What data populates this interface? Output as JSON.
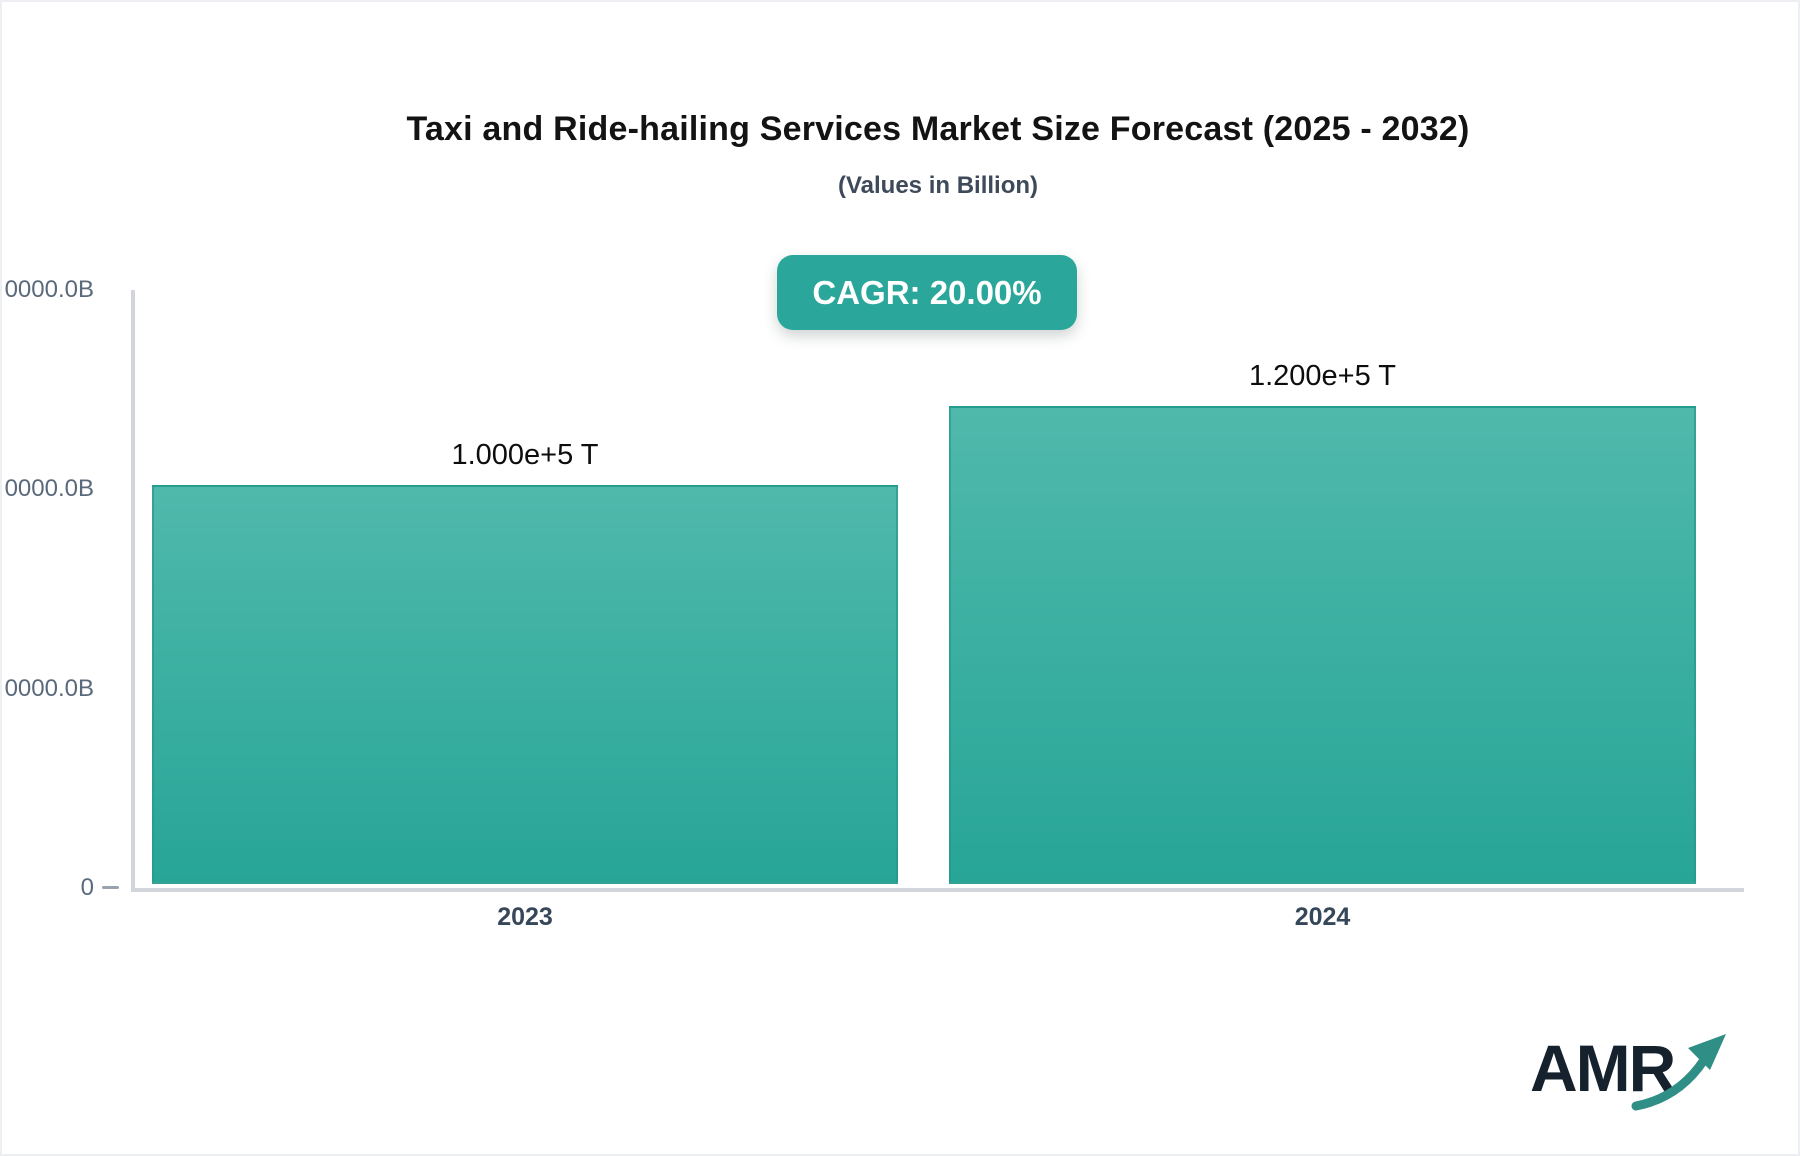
{
  "header": {
    "title": "Taxi and Ride-hailing Services Market Size Forecast (2025 - 2032)",
    "subtitle": "(Values in Billion)",
    "cagr_badge": "CAGR: 20.00%"
  },
  "chart_data": {
    "type": "bar",
    "title": "Taxi and Ride-hailing Services Market Size Forecast (2025 - 2032)",
    "subtitle": "(Values in Billion)",
    "categories": [
      "2023",
      "2024"
    ],
    "values": [
      100000,
      120000
    ],
    "value_labels": [
      "1.000e+5 T",
      "1.200e+5 T"
    ],
    "cagr_percent": "20.00%",
    "ylim": [
      0,
      150000
    ],
    "y_tick_labels": [
      "0000.0B",
      "0000.0B",
      "0000.0B",
      "0"
    ],
    "y_tick_values": [
      150000,
      100000,
      50000,
      0
    ],
    "grid": false,
    "legend": "none",
    "bar_color_top": "#4fb9ac",
    "bar_color_bottom": "#27a597"
  },
  "footer": {
    "logo_text": "AMR"
  },
  "colors": {
    "accent_teal": "#2aa79a",
    "axis_line": "#d2d5db",
    "y_label_text": "#5a6a7c",
    "x_label_text": "#36475a",
    "title_text": "#131313",
    "logo_navy": "#15222d",
    "logo_arrow_teal": "#2f8e86"
  }
}
